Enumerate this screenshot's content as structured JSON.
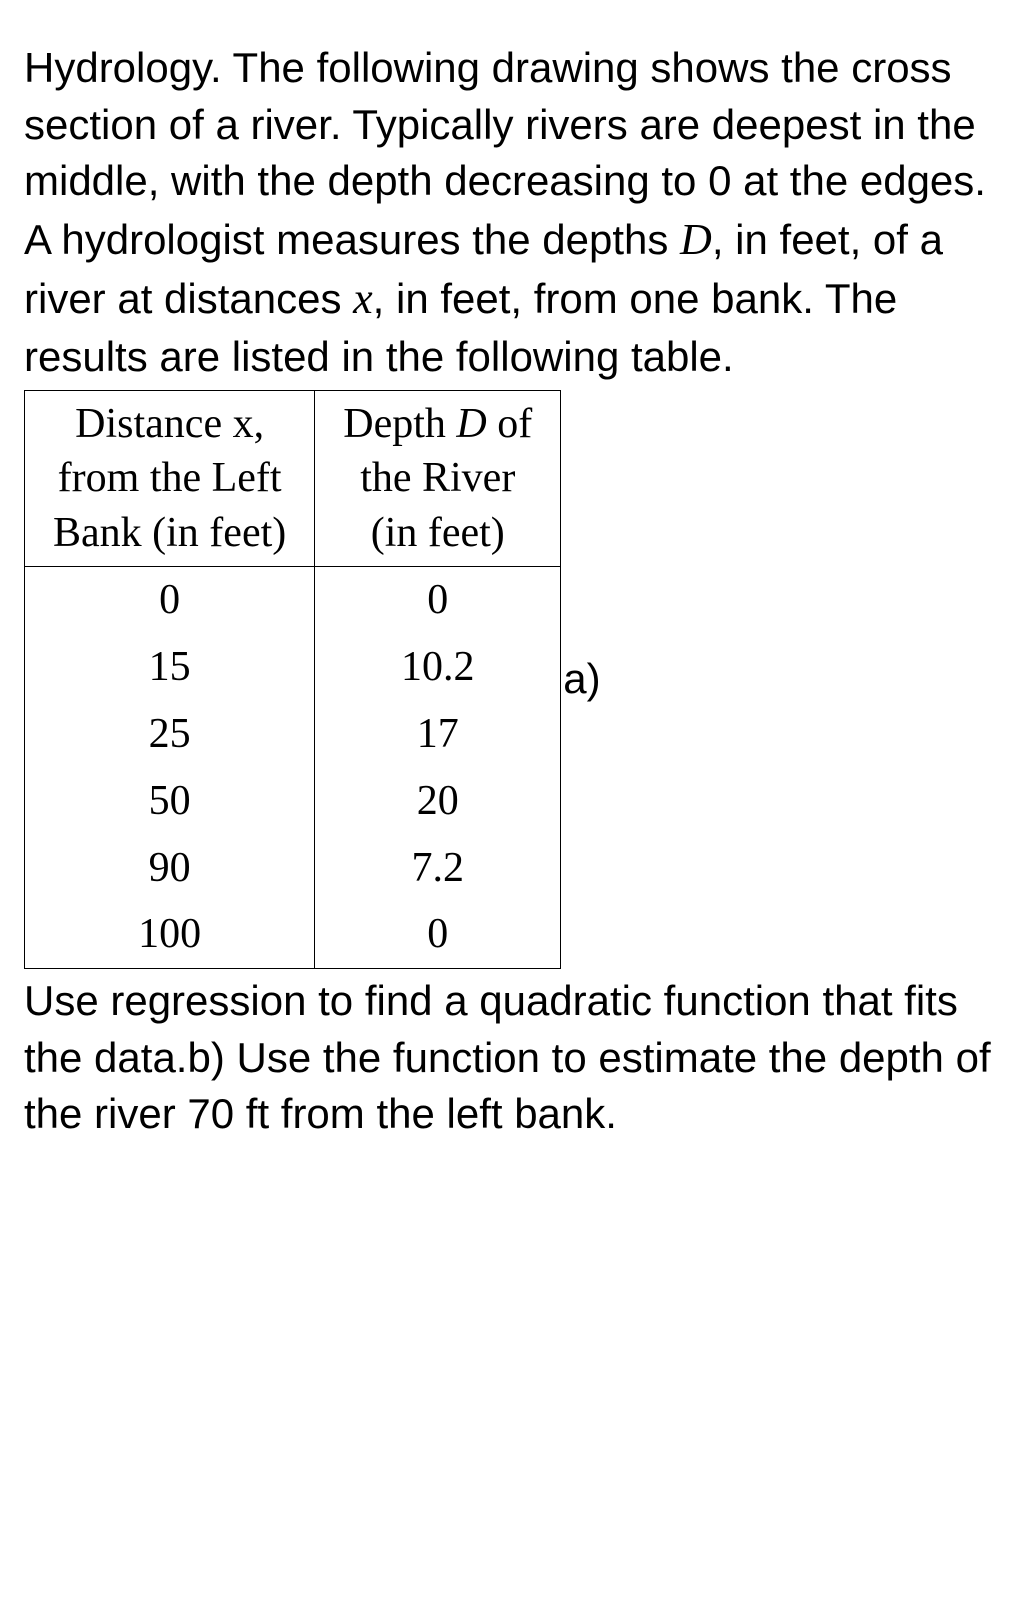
{
  "text": {
    "intro_part1": "Hydrology. The following drawing shows the cross section of a river. Typically rivers are deepest in the middle, with the depth decreasing to 0 at the edges. A hydrologist measures the depths ",
    "var_D": "D",
    "intro_part2": ", in feet, of a river at distances ",
    "var_x": "x",
    "intro_part3": ", in feet, from one bank. The results are listed in the following table.",
    "outro": "Use regression to find a quadratic function that fits the data.b) Use the function to estimate the depth of the river 70 ft from the left bank.",
    "side_label": "a)"
  },
  "table": {
    "header_col1_line1": "Distance x,",
    "header_col1_line2": "from the Left",
    "header_col1_line3": "Bank (in feet)",
    "header_col2_line1_pre": "Depth ",
    "header_col2_line1_var": "D",
    "header_col2_line1_post": " of",
    "header_col2_line2": "the River",
    "header_col2_line3": "(in feet)",
    "rows": [
      {
        "x": "0",
        "d": "0"
      },
      {
        "x": "15",
        "d": "10.2"
      },
      {
        "x": "25",
        "d": "17"
      },
      {
        "x": "50",
        "d": "20"
      },
      {
        "x": "90",
        "d": "7.2"
      },
      {
        "x": "100",
        "d": "0"
      }
    ],
    "border_color": "#000000",
    "font_family": "Georgia, Times New Roman, serif",
    "cell_fontsize": 42
  },
  "styling": {
    "body_fontsize": 42,
    "body_font_family": "Arial, Helvetica, sans-serif",
    "math_font_family": "Georgia, Times New Roman, serif",
    "background_color": "#ffffff",
    "text_color": "#000000"
  }
}
